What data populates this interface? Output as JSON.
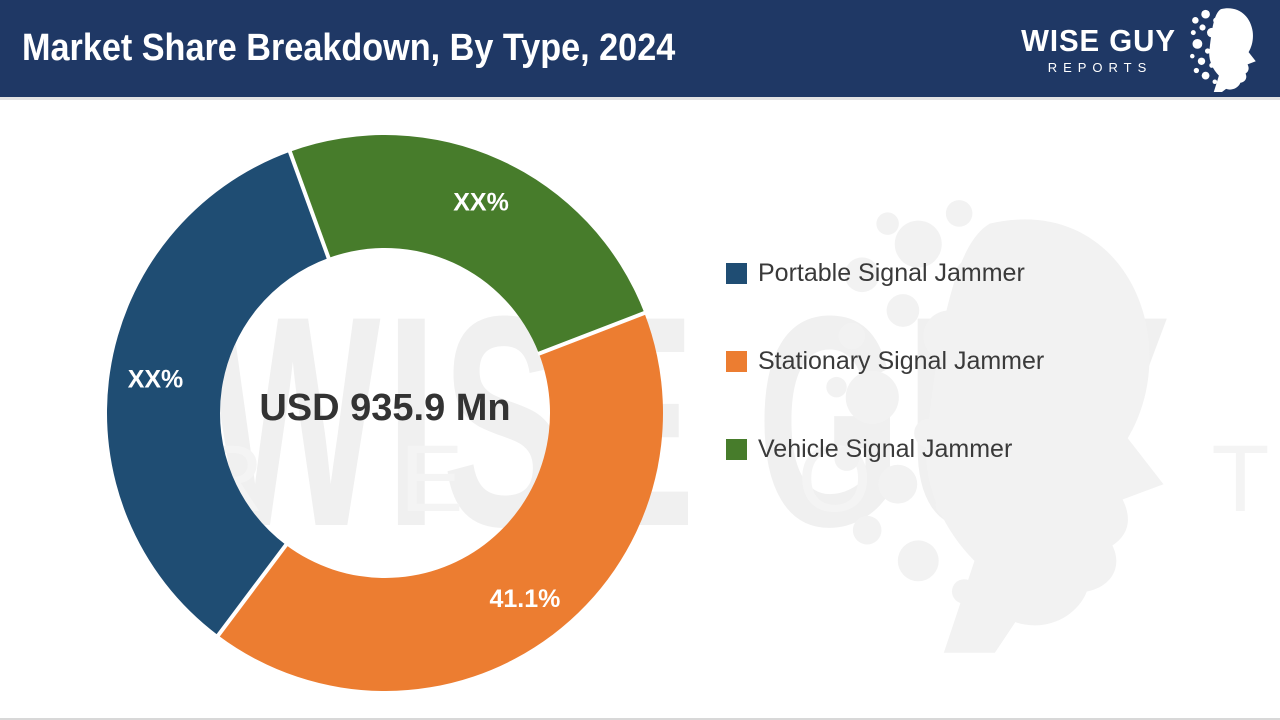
{
  "header": {
    "title": "Market Share Breakdown, By Type, 2024",
    "bg_color": "#1f3865",
    "logo": {
      "primary": "WISE GUY",
      "secondary": "REPORTS"
    }
  },
  "chart_data": {
    "type": "pie",
    "subtype": "donut",
    "title": "Market Share Breakdown, By Type, 2024",
    "center_label": "USD 935.9 Mn",
    "start_angle_deg": 110,
    "direction": "clockwise",
    "segments": [
      {
        "name": "Vehicle Signal Jammer",
        "label": "XX%",
        "value_pct": 24.7,
        "color": "#477c2b"
      },
      {
        "name": "Stationary Signal Jammer",
        "label": "41.1%",
        "value_pct": 41.1,
        "color": "#ec7d31"
      },
      {
        "name": "Portable Signal Jammer",
        "label": "XX%",
        "value_pct": 34.2,
        "color": "#1f4d73"
      }
    ],
    "legend_position": "right",
    "legend": [
      {
        "label": "Portable Signal Jammer",
        "color": "#1f4d73"
      },
      {
        "label": "Stationary Signal Jammer",
        "color": "#ec7d31"
      },
      {
        "label": "Vehicle Signal Jammer",
        "color": "#477c2b"
      }
    ]
  },
  "watermark": {
    "line1": "WISE GUY",
    "line2": "R E P O R T S"
  }
}
